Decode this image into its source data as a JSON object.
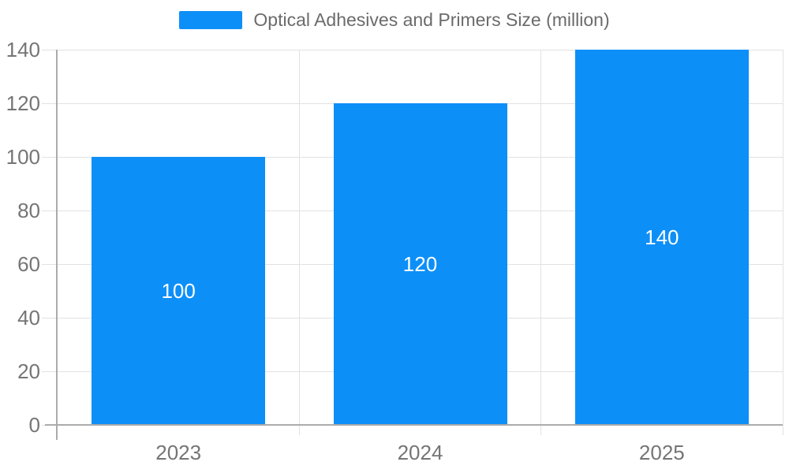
{
  "chart_data": {
    "type": "bar",
    "series_name": "Optical Adhesives and Primers Size (million)",
    "categories": [
      "2023",
      "2024",
      "2025"
    ],
    "values": [
      100,
      120,
      140
    ],
    "data_labels": [
      "100",
      "120",
      "140"
    ],
    "yticks": [
      0,
      20,
      40,
      60,
      80,
      100,
      120,
      140
    ],
    "ylim": [
      0,
      140
    ],
    "xlabel": "",
    "ylabel": "",
    "title": "",
    "grid": "on",
    "legend_position": "top",
    "colors": {
      "bar": "#0d8ff8",
      "data_label": "#ffffff",
      "axis_label": "#757575",
      "legend_text": "#6b6b6b",
      "gridline": "#e2e2e2",
      "axis_line": "#ababab",
      "background": "#ffffff"
    }
  }
}
